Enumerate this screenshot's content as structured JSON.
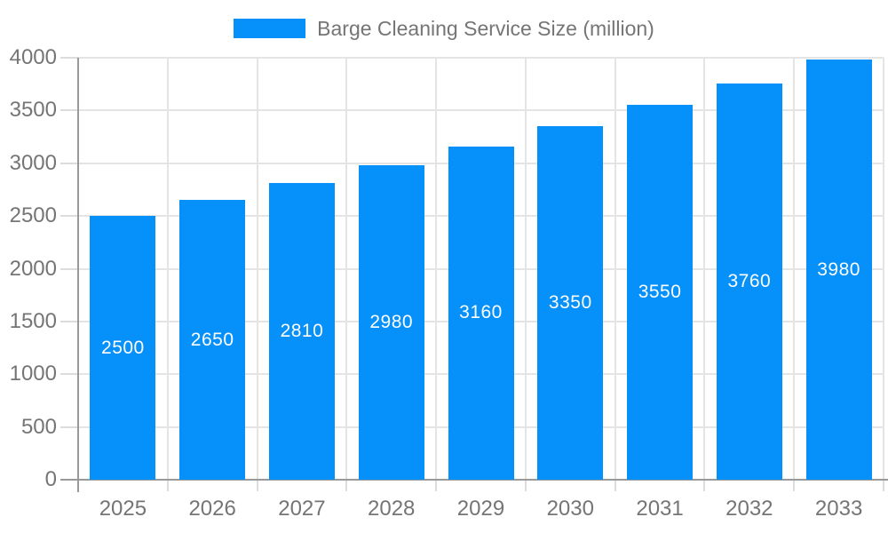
{
  "chart_data": {
    "type": "bar",
    "title": "Barge Cleaning Service Size (million)",
    "legend": [
      "Barge Cleaning Service Size (million)"
    ],
    "legend_position": "top-center",
    "categories": [
      "2025",
      "2026",
      "2027",
      "2028",
      "2029",
      "2030",
      "2031",
      "2032",
      "2033"
    ],
    "values": [
      2500,
      2650,
      2810,
      2980,
      3160,
      3350,
      3550,
      3760,
      3980
    ],
    "bar_labels": [
      2500,
      2650,
      2810,
      2980,
      3160,
      3350,
      3550,
      3760,
      3980
    ],
    "bar_label_position": "inside-center",
    "xlabel": "",
    "ylabel": "",
    "ylim": [
      0,
      4000
    ],
    "yticks": [
      0,
      500,
      1000,
      1500,
      2000,
      2500,
      3000,
      3500,
      4000
    ],
    "grid": true
  },
  "colors": {
    "bar": "#0690fa",
    "grid": "#e4e4e4",
    "tick": "#dcdcdc",
    "axis": "#999999",
    "text": "#757575",
    "bar_label": "#ffffff",
    "background": "#ffffff"
  }
}
